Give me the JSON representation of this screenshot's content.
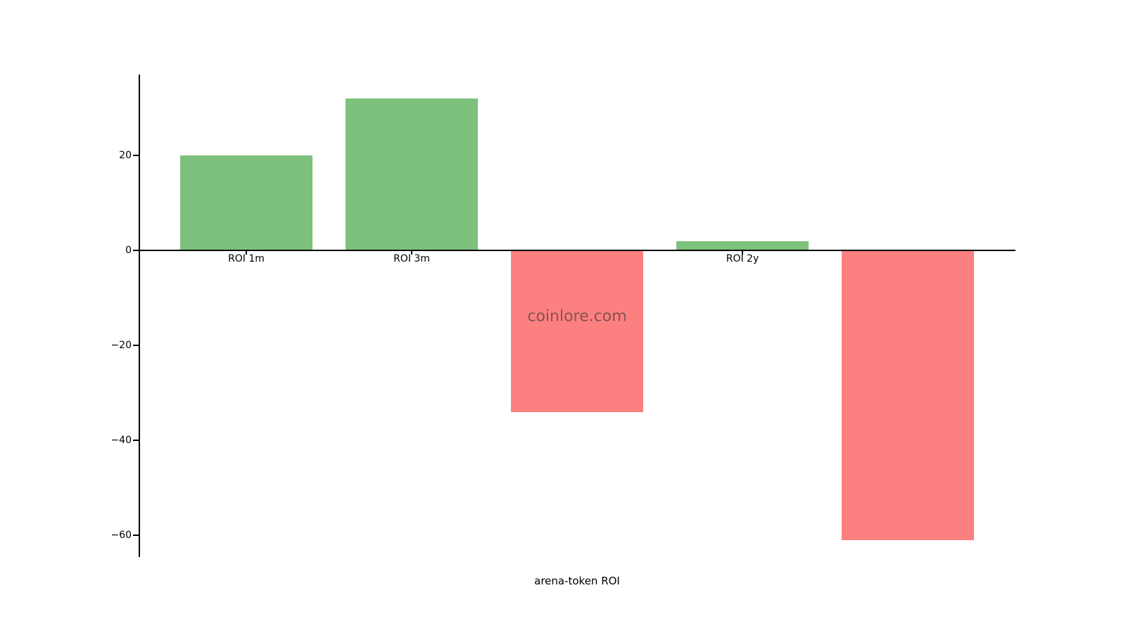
{
  "page": {
    "background": "#ffffff",
    "watermark": "coinlore.com"
  },
  "chart_data": {
    "type": "bar",
    "title": "",
    "xlabel": "arena-token ROI",
    "ylabel": "",
    "categories": [
      "ROI 1m",
      "ROI 3m",
      "",
      "ROI 2y",
      ""
    ],
    "values": [
      20,
      32,
      -34,
      2,
      -61
    ],
    "bars": [
      {
        "label": "ROI 1m",
        "value": 20,
        "color": "#7cc17c",
        "label_visible": true
      },
      {
        "label": "ROI 3m",
        "value": 32,
        "color": "#7cc17c",
        "label_visible": true
      },
      {
        "label": "",
        "value": -34,
        "color": "#fd8080",
        "label_visible": false
      },
      {
        "label": "ROI 2y",
        "value": 2,
        "color": "#7cc17c",
        "label_visible": true
      },
      {
        "label": "",
        "value": -61,
        "color": "#fd8080",
        "label_visible": false
      }
    ],
    "positive_color": "#7cc17c",
    "negative_color": "#fd8080",
    "axis_color": "#000000",
    "y_ticks": [
      {
        "value": 20,
        "label": "20"
      },
      {
        "value": 0,
        "label": "0"
      },
      {
        "value": -20,
        "label": "−20"
      },
      {
        "value": -40,
        "label": "−40"
      },
      {
        "value": -60,
        "label": "−60"
      }
    ],
    "ylim": [
      -65,
      37
    ],
    "grid": false,
    "legend": null,
    "watermark": "coinlore.com"
  }
}
